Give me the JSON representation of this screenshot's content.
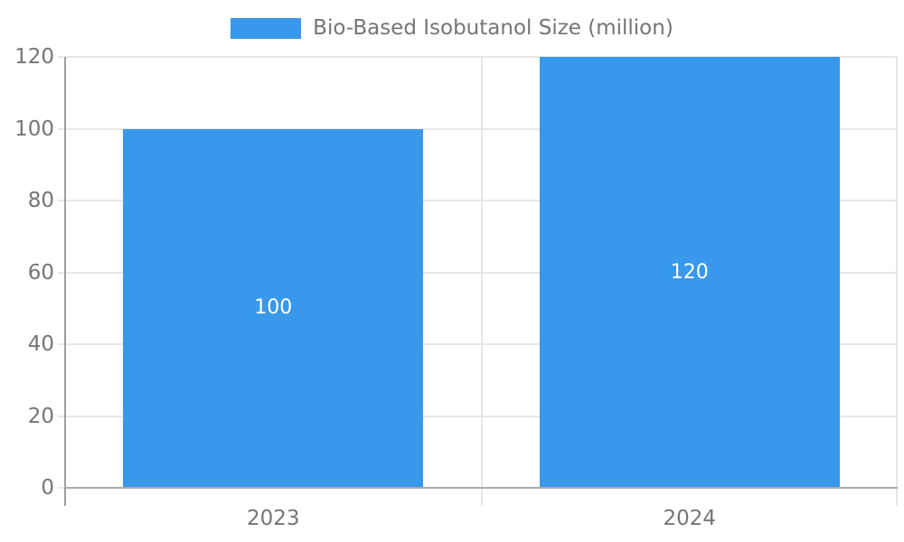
{
  "chart_data": {
    "type": "bar",
    "title": "Bio-Based Isobutanol Size (million)",
    "categories": [
      "2023",
      "2024"
    ],
    "values": [
      100,
      120
    ],
    "data_labels": [
      "100",
      "120"
    ],
    "xlabel": "",
    "ylabel": "",
    "ylim": [
      0,
      120
    ],
    "yticks": [
      0,
      20,
      40,
      60,
      80,
      100,
      120
    ],
    "legend_position": "top-center",
    "grid": true,
    "colors": {
      "bar": "#3898ec",
      "data_label": "#ffffff",
      "axis_text": "#757575",
      "gridline": "#e7e7e7",
      "x_axis_line": "#ababab",
      "y_axis_line": "#9e9e9e"
    }
  }
}
